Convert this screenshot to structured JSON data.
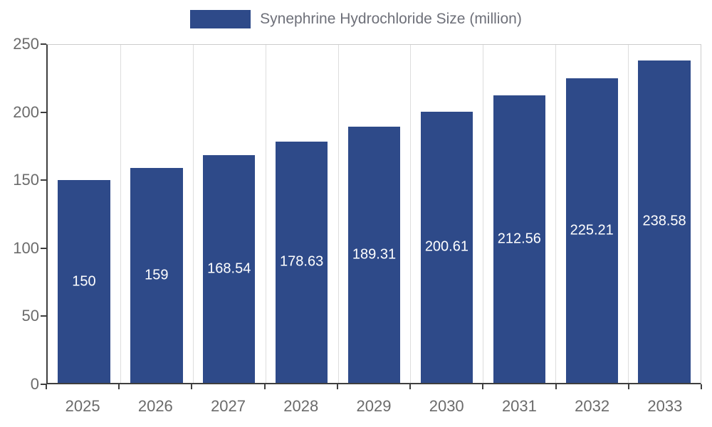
{
  "chart_data": {
    "type": "bar",
    "title": "Synephrine Hydrochloride Size (million)",
    "categories": [
      "2025",
      "2026",
      "2027",
      "2028",
      "2029",
      "2030",
      "2031",
      "2032",
      "2033"
    ],
    "values": [
      150,
      159,
      168.54,
      178.63,
      189.31,
      200.61,
      212.56,
      225.21,
      238.58
    ],
    "value_labels": [
      "150",
      "159",
      "168.54",
      "178.63",
      "189.31",
      "200.61",
      "212.56",
      "225.21",
      "238.58"
    ],
    "xlabel": "",
    "ylabel": "",
    "ylim": [
      0,
      250
    ],
    "yticks": [
      0,
      50,
      100,
      150,
      200,
      250
    ],
    "legend_position": "top",
    "grid": "vertical",
    "bar_color": "#2e4a89",
    "value_label_color": "#ffffff",
    "axis_text_color": "#6b6b6b"
  }
}
